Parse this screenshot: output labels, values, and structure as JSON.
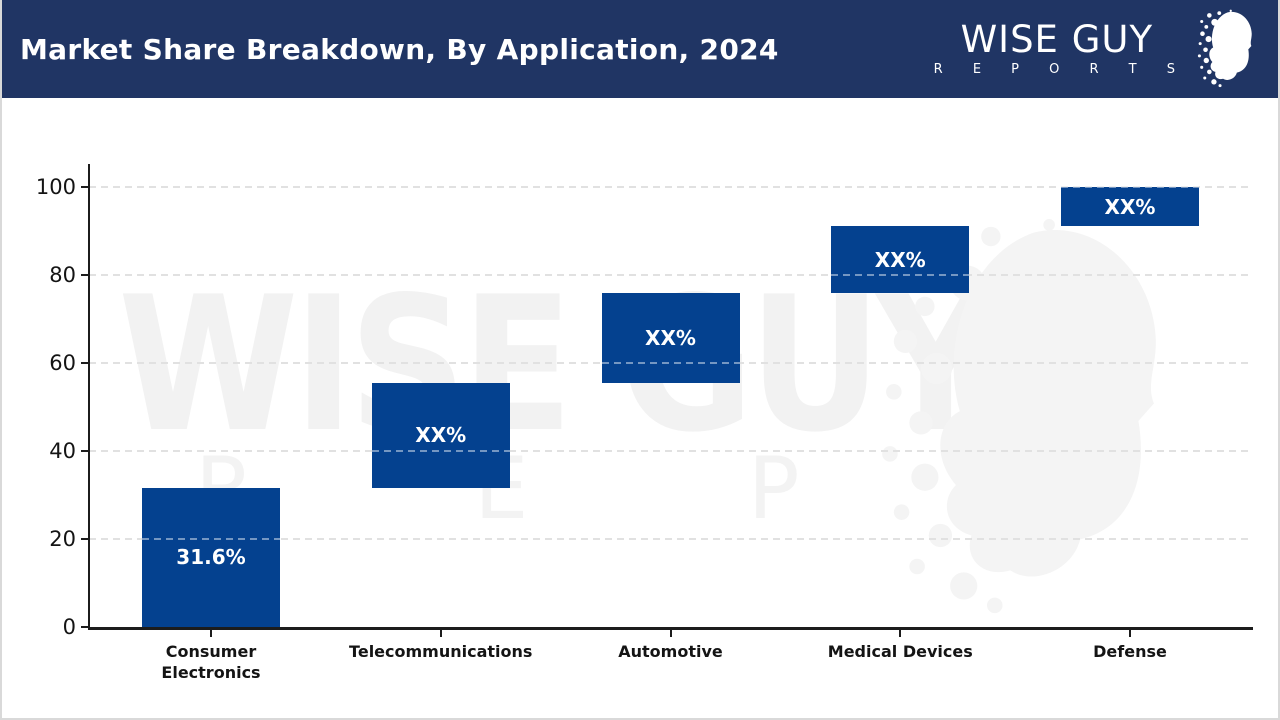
{
  "header": {
    "title": "Market Share Breakdown, By Application, 2024",
    "bg_color": "#203564",
    "logo": {
      "line1": "WISE GUY",
      "line2": "R E P O R T S"
    }
  },
  "watermark": {
    "line1": "WISE GUY",
    "line2": "R E P O R T S"
  },
  "colors": {
    "bar": "#04418f",
    "header_navy": "#203564",
    "grid": "#e1e1e1",
    "axis": "#1c1c1c",
    "page_border": "#d9d9d9",
    "watermark": "#f2f2f2"
  },
  "chart_data": {
    "type": "bar",
    "variant": "floating-waterfall",
    "title": "Market Share Breakdown, By Application, 2024",
    "categories": [
      "Consumer Electronics",
      "Telecommunications",
      "Automotive",
      "Medical Devices",
      "Defense"
    ],
    "bars": [
      {
        "category_lines": [
          "Consumer",
          "Electronics"
        ],
        "from": 0,
        "to": 31.6,
        "label": "31.6%"
      },
      {
        "category_lines": [
          "Telecommunications"
        ],
        "from": 31.6,
        "to": 55.5,
        "label": "XX%"
      },
      {
        "category_lines": [
          "Automotive"
        ],
        "from": 55.5,
        "to": 75.9,
        "label": "XX%"
      },
      {
        "category_lines": [
          "Medical Devices"
        ],
        "from": 75.9,
        "to": 91.1,
        "label": "XX%"
      },
      {
        "category_lines": [
          "Defense"
        ],
        "from": 91.1,
        "to": 100,
        "label": "XX%"
      }
    ],
    "yticks": [
      0,
      20,
      40,
      60,
      80,
      100
    ],
    "ytick_labels": [
      "0",
      "20",
      "40",
      "60",
      "80",
      "100"
    ],
    "ylim": [
      0,
      105
    ],
    "xlabel": "",
    "ylabel": "",
    "grid": "dashed horizontal",
    "legend": false,
    "bar_color": "#04418f"
  }
}
